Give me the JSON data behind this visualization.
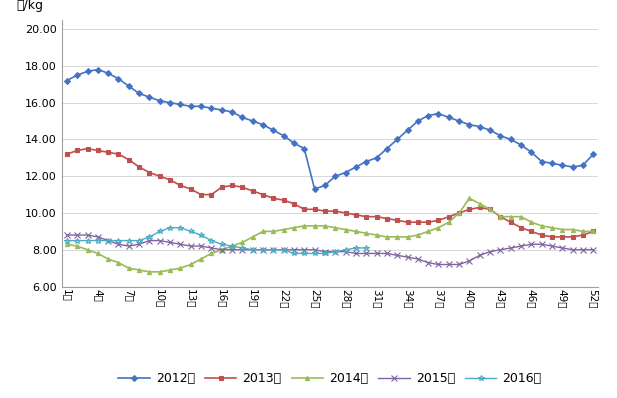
{
  "ylabel": "元/kg",
  "xlabels": [
    "1周",
    "4周",
    "7周",
    "10周",
    "13周",
    "16周",
    "19周",
    "22周",
    "25周",
    "28周",
    "31周",
    "34周",
    "37周",
    "40周",
    "43周",
    "46周",
    "49周",
    "52周"
  ],
  "xtick_positions": [
    1,
    4,
    7,
    10,
    13,
    16,
    19,
    22,
    25,
    28,
    31,
    34,
    37,
    40,
    43,
    46,
    49,
    52
  ],
  "ylim": [
    6.0,
    20.5
  ],
  "yticks": [
    6.0,
    8.0,
    10.0,
    12.0,
    14.0,
    16.0,
    18.0,
    20.0
  ],
  "series": {
    "2012年": {
      "color": "#4472C4",
      "marker": "D",
      "markersize": 3,
      "linewidth": 1.2,
      "values": [
        17.2,
        17.5,
        17.7,
        17.8,
        17.6,
        17.3,
        16.9,
        16.5,
        16.3,
        16.1,
        16.0,
        15.9,
        15.8,
        15.8,
        15.7,
        15.6,
        15.5,
        15.2,
        15.0,
        14.8,
        14.5,
        14.2,
        13.8,
        13.5,
        11.3,
        11.5,
        12.0,
        12.2,
        12.5,
        12.8,
        13.0,
        13.5,
        14.0,
        14.5,
        15.0,
        15.3,
        15.4,
        15.2,
        15.0,
        14.8,
        14.7,
        14.5,
        14.2,
        14.0,
        13.7,
        13.3,
        12.8,
        12.7,
        12.6,
        12.5,
        12.6,
        13.2
      ]
    },
    "2013年": {
      "color": "#C0504D",
      "marker": "s",
      "markersize": 3,
      "linewidth": 1.2,
      "values": [
        13.2,
        13.4,
        13.5,
        13.4,
        13.3,
        13.2,
        12.9,
        12.5,
        12.2,
        12.0,
        11.8,
        11.5,
        11.3,
        11.0,
        11.0,
        11.4,
        11.5,
        11.4,
        11.2,
        11.0,
        10.8,
        10.7,
        10.5,
        10.2,
        10.2,
        10.1,
        10.1,
        10.0,
        9.9,
        9.8,
        9.8,
        9.7,
        9.6,
        9.5,
        9.5,
        9.5,
        9.6,
        9.8,
        10.0,
        10.2,
        10.3,
        10.2,
        9.8,
        9.5,
        9.2,
        9.0,
        8.8,
        8.7,
        8.7,
        8.7,
        8.8,
        9.0
      ]
    },
    "2014年": {
      "color": "#9BBB59",
      "marker": "^",
      "markersize": 3,
      "linewidth": 1.2,
      "values": [
        8.3,
        8.2,
        8.0,
        7.8,
        7.5,
        7.3,
        7.0,
        6.9,
        6.8,
        6.8,
        6.9,
        7.0,
        7.2,
        7.5,
        7.8,
        8.0,
        8.2,
        8.4,
        8.7,
        9.0,
        9.0,
        9.1,
        9.2,
        9.3,
        9.3,
        9.3,
        9.2,
        9.1,
        9.0,
        8.9,
        8.8,
        8.7,
        8.7,
        8.7,
        8.8,
        9.0,
        9.2,
        9.5,
        10.0,
        10.8,
        10.5,
        10.2,
        9.8,
        9.8,
        9.8,
        9.5,
        9.3,
        9.2,
        9.1,
        9.1,
        9.0,
        9.0
      ]
    },
    "2015年": {
      "color": "#8064A2",
      "marker": "x",
      "markersize": 4,
      "linewidth": 1.0,
      "values": [
        8.8,
        8.8,
        8.8,
        8.7,
        8.5,
        8.3,
        8.2,
        8.3,
        8.5,
        8.5,
        8.4,
        8.3,
        8.2,
        8.2,
        8.1,
        8.0,
        8.0,
        8.0,
        8.0,
        8.0,
        8.0,
        8.0,
        8.0,
        8.0,
        8.0,
        7.9,
        7.9,
        7.9,
        7.8,
        7.8,
        7.8,
        7.8,
        7.7,
        7.6,
        7.5,
        7.3,
        7.2,
        7.2,
        7.2,
        7.4,
        7.7,
        7.9,
        8.0,
        8.1,
        8.2,
        8.3,
        8.3,
        8.2,
        8.1,
        8.0,
        8.0,
        8.0
      ]
    },
    "2016年": {
      "color": "#4BACC6",
      "marker": "*",
      "markersize": 4,
      "linewidth": 1.0,
      "values": [
        8.5,
        8.5,
        8.5,
        8.5,
        8.5,
        8.5,
        8.5,
        8.5,
        8.7,
        9.0,
        9.2,
        9.2,
        9.0,
        8.8,
        8.5,
        8.3,
        8.2,
        8.1,
        8.0,
        8.0,
        8.0,
        8.0,
        7.8,
        7.8,
        7.8,
        7.8,
        7.9,
        8.0,
        8.1,
        8.1,
        null,
        null,
        null,
        null,
        null,
        null,
        null,
        null,
        null,
        null,
        null,
        null,
        null,
        null,
        null,
        null,
        null,
        null,
        null,
        null,
        null,
        null
      ]
    }
  },
  "legend_labels": [
    "2012年",
    "2013年",
    "2014年",
    "2015年",
    "2016年"
  ],
  "background_color": "#FFFFFF",
  "grid_color": "#C8C8C8",
  "plot_area_bg": "#FFFFFF"
}
